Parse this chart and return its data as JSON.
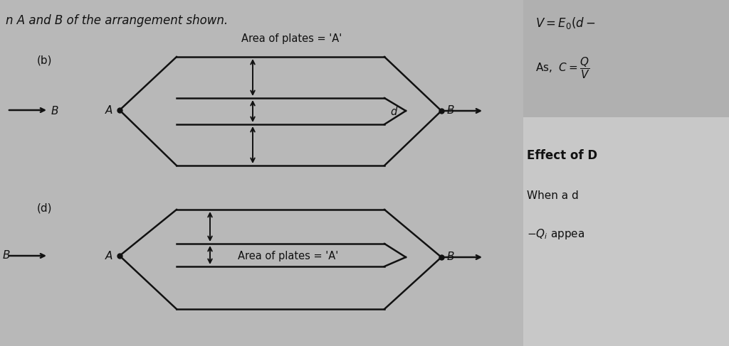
{
  "bg_color": "#b8b8b8",
  "right_panel_bg": "#c0c0c0",
  "line_color": "#111111",
  "fig_width": 10.24,
  "fig_height": 4.87,
  "title": "n A and B of the arrangement shown.",
  "b_label": "(b)",
  "d_label": "(d)",
  "b_arrow_label": "B",
  "b_A_label": "A",
  "b_B_label": "B",
  "b_d_label": "d",
  "b_area_label": "Area of plates = 'A'",
  "d_arrow_label": "B",
  "d_A_label": "A",
  "d_B_label": "B",
  "d_area_label": "Area of plates = 'A'",
  "right_line1": "V = E_0(d -",
  "right_line2": "As,  C = Q/V",
  "right_line3": "Effect of D",
  "right_line4": "When a d",
  "right_line5": "-Q_i appea"
}
